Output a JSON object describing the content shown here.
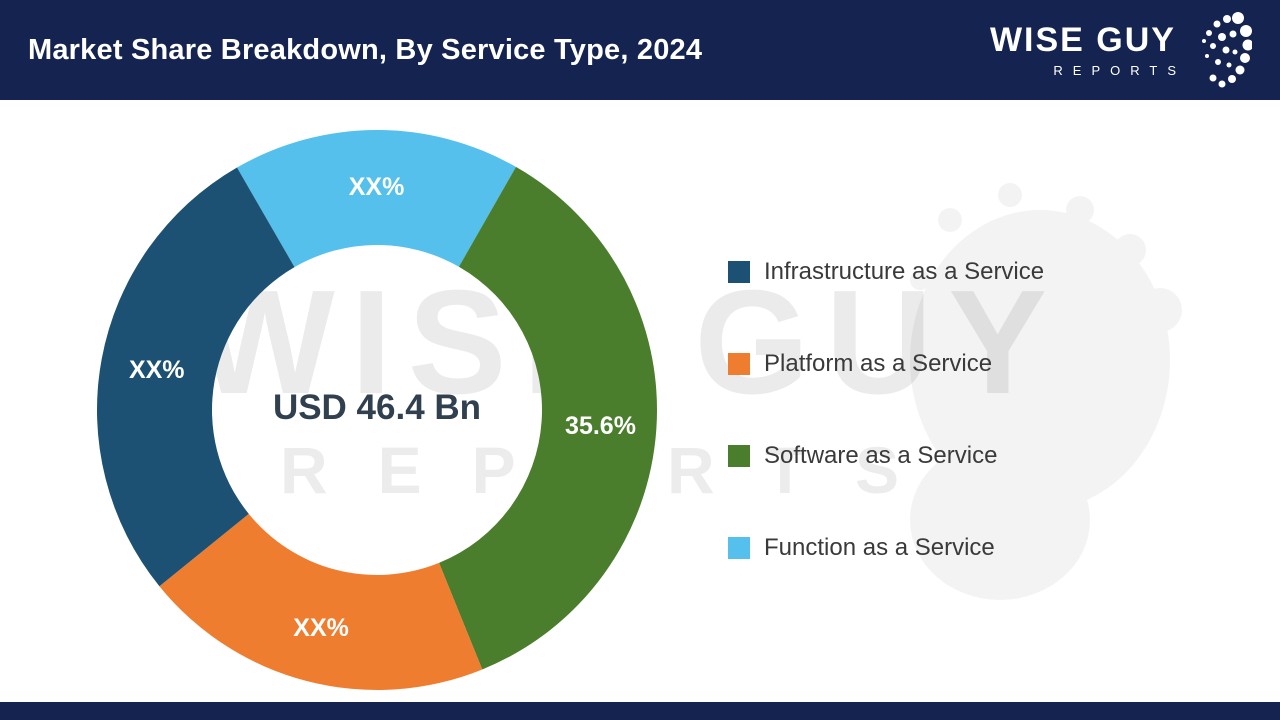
{
  "header": {
    "title": "Market Share Breakdown, By Service Type, 2024",
    "logo": {
      "line1": "WISE GUY",
      "line2": "REPORTS"
    }
  },
  "watermark": {
    "line1": "WISE GUY",
    "line2": "REPORTS"
  },
  "colors": {
    "header_bg": "#14234f",
    "footer_bg": "#14234f",
    "center_text": "#31404f",
    "legend_text": "#3a3a3a"
  },
  "chart_data": {
    "type": "pie",
    "donut": true,
    "title": "Market Share Breakdown, By Service Type, 2024",
    "center_label": "USD 46.4 Bn",
    "start_angle_deg": 330,
    "legend_position": "right",
    "segments": [
      {
        "name": "Function as a Service",
        "value": 16.6,
        "label": "XX%",
        "color": "#55c0ec"
      },
      {
        "name": "Software as a Service",
        "value": 35.6,
        "label": "35.6%",
        "color": "#4a7d2c"
      },
      {
        "name": "Platform as a Service",
        "value": 20.3,
        "label": "XX%",
        "color": "#ee7d30"
      },
      {
        "name": "Infrastructure as a Service",
        "value": 27.5,
        "label": "XX%",
        "color": "#1d5173"
      }
    ]
  },
  "legend": {
    "items": [
      {
        "label": "Infrastructure as a Service",
        "color": "#1d5173"
      },
      {
        "label": "Platform as a Service",
        "color": "#ee7d30"
      },
      {
        "label": "Software as a Service",
        "color": "#4a7d2c"
      },
      {
        "label": "Function as a Service",
        "color": "#55c0ec"
      }
    ]
  }
}
